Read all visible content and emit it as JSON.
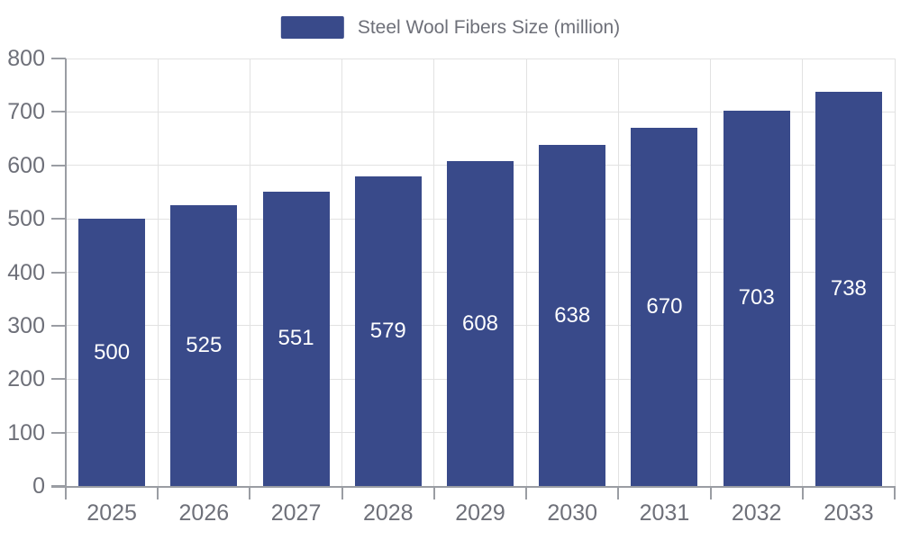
{
  "legend": {
    "label": "Steel Wool Fibers Size (million)"
  },
  "chart_data": {
    "type": "bar",
    "title": "Steel Wool Fibers Size (million)",
    "categories": [
      "2025",
      "2026",
      "2027",
      "2028",
      "2029",
      "2030",
      "2031",
      "2032",
      "2033"
    ],
    "values": [
      500,
      525,
      551,
      579,
      608,
      638,
      670,
      703,
      738
    ],
    "series": [
      {
        "name": "Steel Wool Fibers Size (million)",
        "values": [
          500,
          525,
          551,
          579,
          608,
          638,
          670,
          703,
          738
        ]
      }
    ],
    "xlabel": "",
    "ylabel": "",
    "ylim": [
      0,
      800
    ],
    "yticks": [
      0,
      100,
      200,
      300,
      400,
      500,
      600,
      700,
      800
    ],
    "grid": true,
    "legend_position": "top-center",
    "bar_labels_shown": true,
    "colors": {
      "bar": "#394A8A",
      "bar_label": "#FFFFFF",
      "axis_text": "#6E7079",
      "grid_line": "#E2E2E2",
      "axis_line": "#9A9DA3",
      "background": "#FFFFFF"
    }
  }
}
